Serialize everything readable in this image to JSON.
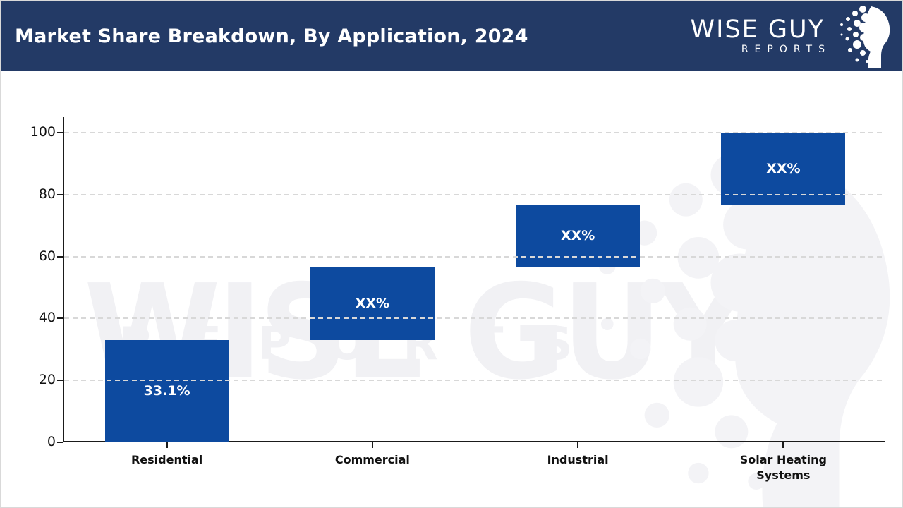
{
  "header": {
    "bg_color": "#233a66",
    "title": "Market Share Breakdown, By Application, 2024",
    "logo": {
      "line1": "WISE GUY",
      "line2": "REPORTS"
    }
  },
  "watermark": {
    "line1": "WISE GUY",
    "line2": "REPORTS"
  },
  "chart_data": {
    "type": "bar",
    "subtype": "waterfall",
    "title": "Market Share Breakdown, By Application, 2024",
    "categories": [
      "Residential",
      "Commercial",
      "Industrial",
      "Solar Heating Systems"
    ],
    "segments": [
      {
        "category": "Residential",
        "start": 0,
        "end": 33.1,
        "label": "33.1%"
      },
      {
        "category": "Commercial",
        "start": 33.1,
        "end": 56.7,
        "label": "XX%"
      },
      {
        "category": "Industrial",
        "start": 56.7,
        "end": 76.8,
        "label": "XX%"
      },
      {
        "category": "Solar Heating Systems",
        "start": 76.8,
        "end": 100,
        "label": "XX%"
      }
    ],
    "xlabel": "",
    "ylabel": "",
    "yticks": [
      0,
      20,
      40,
      60,
      80,
      100
    ],
    "ylim": [
      0,
      105
    ],
    "bar_color": "#0d4a9f",
    "bar_label_color": "#ffffff",
    "axis_color": "#1a1a1a",
    "grid": {
      "axis": "y",
      "style": "dashed",
      "color": "#d8d8d8",
      "drawn_above_bars": true
    },
    "legend": "none"
  }
}
